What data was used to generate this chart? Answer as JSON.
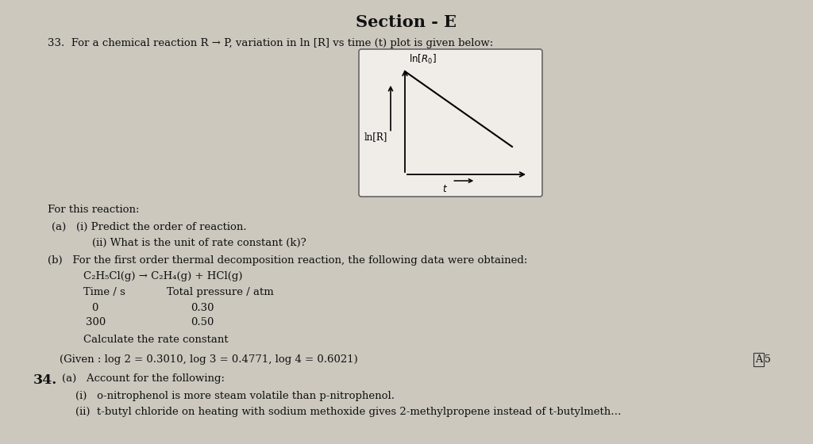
{
  "page_bg": "#ccc8be",
  "section_title": "Section - E",
  "q33_text": "33.  For a chemical reaction R → P, variation in ln [R] vs time (t) plot is given below:",
  "graph_box_color": "#f0ede8",
  "for_this_reaction": "For this reaction:",
  "qa_i": "(a)   (i) Predict the order of reaction.",
  "qa_ii": "        (ii) What is the unit of rate constant (k)?",
  "qb_text": "(b)   For the first order thermal decomposition reaction, the following data were obtained:",
  "reaction_text": "C₂H₅Cl(g) → C₂H₄(g) + HCl(g)",
  "table_header1": "Time / s",
  "table_header2": "Total pressure / atm",
  "table_r1c1": "0",
  "table_r1c2": "0.30",
  "table_r2c1": "300",
  "table_r2c2": "0.50",
  "calc_text": "Calculate the rate constant",
  "given_text": "(Given : log 2 = 0.3010, log 3 = 0.4771, log 4 = 0.6021)",
  "ans_box": "A  5",
  "q34_num": "34.",
  "q34_text": "(a)   Account for the following:",
  "q34i_text": "(i)   o-nitrophenol is more steam volatile than p-nitrophenol.",
  "q34ii_text": "(ii)  t-butyl chloride on heating with sodium methoxide gives 2-methylpropene instead of t-butylmeth…",
  "title_fontsize": 15,
  "body_fontsize": 9.5
}
